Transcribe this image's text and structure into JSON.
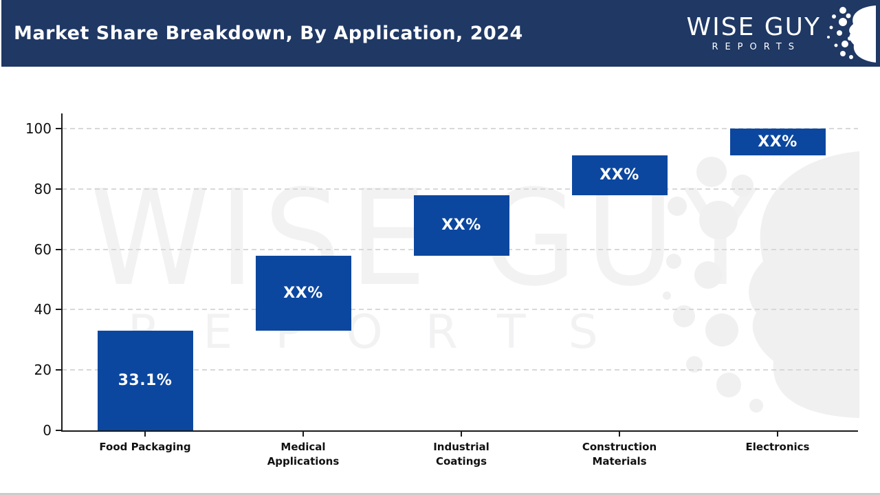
{
  "header": {
    "title": "Market Share Breakdown, By Application, 2024",
    "logo": {
      "brand_line1": "WISE GUY",
      "brand_line2": "REPORTS"
    }
  },
  "watermark": {
    "line1": "WISE GUY",
    "line2": "REPORTS"
  },
  "chart_data": {
    "type": "bar",
    "subtype": "waterfall",
    "title": "Market Share Breakdown, By Application, 2024",
    "categories": [
      "Food Packaging",
      "Medical Applications",
      "Industrial Coatings",
      "Construction Materials",
      "Electronics"
    ],
    "category_label_lines": [
      [
        "Food Packaging"
      ],
      [
        "Medical",
        "Applications"
      ],
      [
        "Industrial",
        "Coatings"
      ],
      [
        "Construction",
        "Materials"
      ],
      [
        "Electronics"
      ]
    ],
    "segments": [
      {
        "category": "Food Packaging",
        "start": 0,
        "end": 33.1,
        "value_label": "33.1%"
      },
      {
        "category": "Medical Applications",
        "start": 33.1,
        "end": 57.9,
        "value_label": "XX%"
      },
      {
        "category": "Industrial Coatings",
        "start": 57.9,
        "end": 77.9,
        "value_label": "XX%"
      },
      {
        "category": "Construction Materials",
        "start": 77.9,
        "end": 91.2,
        "value_label": "XX%"
      },
      {
        "category": "Electronics",
        "start": 91.2,
        "end": 100,
        "value_label": "XX%"
      }
    ],
    "xlabel": "",
    "ylabel": "",
    "yticks": [
      0,
      20,
      40,
      60,
      80,
      100
    ],
    "ylim": [
      0,
      105
    ],
    "grid": "horizontal-dashed",
    "legend": "none",
    "colors": {
      "bar": "#0c479f",
      "bar_label": "#ffffff",
      "grid": "#d8d8d8",
      "axis": "#1a1a1a",
      "header_bg": "#1f3864",
      "header_text": "#ffffff",
      "watermark": "#f2f2f3"
    }
  }
}
